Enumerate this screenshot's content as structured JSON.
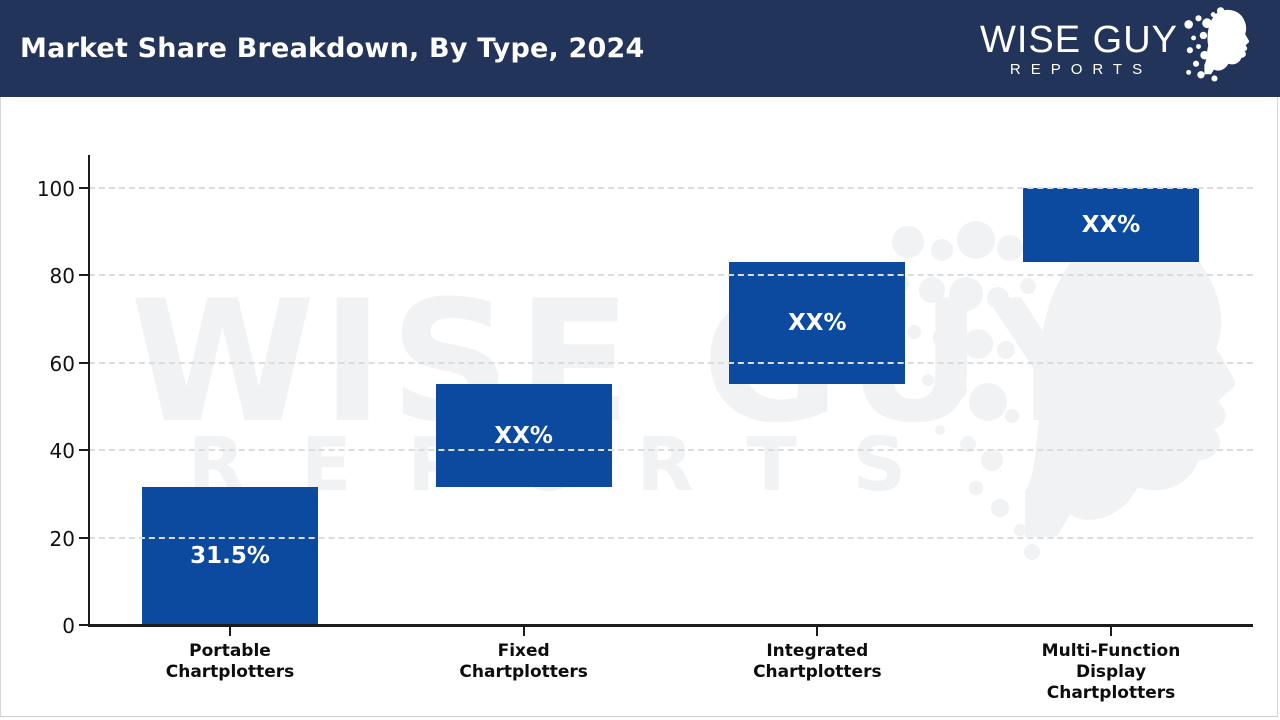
{
  "header": {
    "title": "Market Share Breakdown, By Type, 2024",
    "logo": {
      "brand": "WISE GUY",
      "sub": "REPORTS"
    }
  },
  "watermark": {
    "brand": "WISE GUY",
    "sub": "REPORTS"
  },
  "chart_data": {
    "type": "bar",
    "subtype": "waterfall",
    "title": "Market Share Breakdown, By Type, 2024",
    "categories": [
      "Portable Chartplotters",
      "Fixed Chartplotters",
      "Integrated Chartplotters",
      "Multi-Function Display Chartplotters"
    ],
    "category_label_lines": [
      [
        "Portable",
        "Chartplotters"
      ],
      [
        "Fixed",
        "Chartplotters"
      ],
      [
        "Integrated",
        "Chartplotters"
      ],
      [
        "Multi-Function",
        "Display",
        "Chartplotters"
      ]
    ],
    "series": [
      {
        "name": "Market share (%)",
        "segments": [
          {
            "start": 0,
            "end": 31.5,
            "label": "31.5%"
          },
          {
            "start": 31.5,
            "end": 55,
            "label": "XX%"
          },
          {
            "start": 55,
            "end": 83,
            "label": "XX%"
          },
          {
            "start": 83,
            "end": 100,
            "label": "XX%"
          }
        ]
      }
    ],
    "values_visible": [
      "31.5%",
      "XX%",
      "XX%",
      "XX%"
    ],
    "yticks": [
      0,
      20,
      40,
      60,
      80,
      100
    ],
    "ylim": [
      0,
      107.5
    ],
    "xlabel": "",
    "ylabel": "",
    "legend": "none",
    "grid": "horizontal-dashed",
    "colors": {
      "bar": "#0b4a9e",
      "bar_label": "#ffffff",
      "grid": "#dcdcdc",
      "axis": "#1c1c1c",
      "header_bg": "#223459",
      "watermark": "#f1f2f4"
    }
  }
}
